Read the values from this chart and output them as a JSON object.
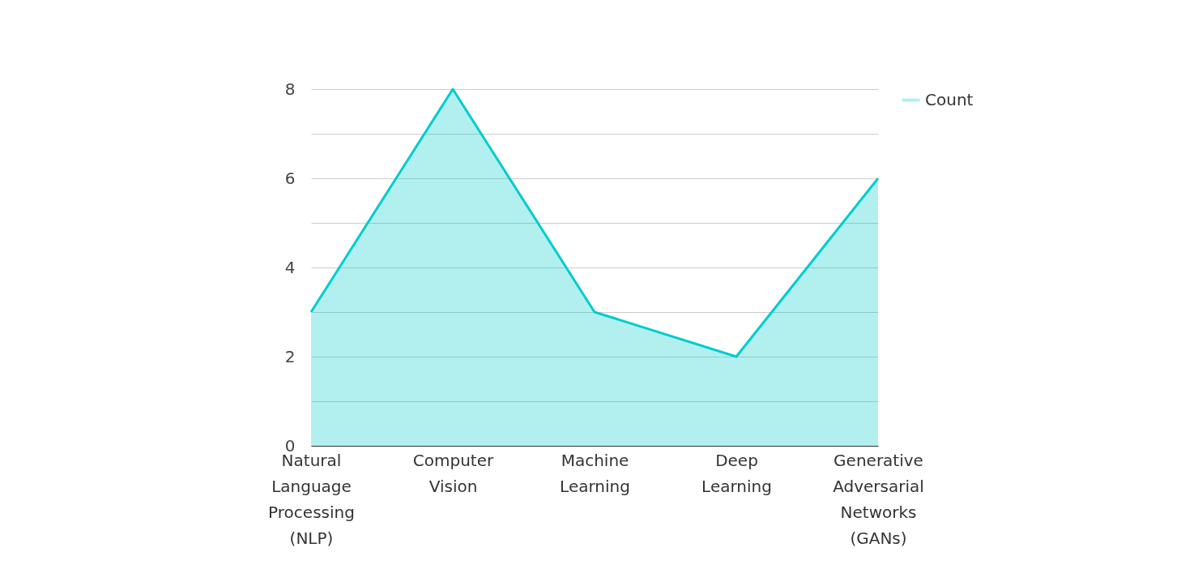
{
  "chart_data": {
    "type": "area",
    "categories": [
      "Natural Language Processing (NLP)",
      "Computer Vision",
      "Machine Learning",
      "Deep Learning",
      "Generative Adversarial Networks (GANs)"
    ],
    "series": [
      {
        "name": "Count",
        "color": "#00cccc",
        "values": [
          3,
          8,
          3,
          2,
          6
        ]
      }
    ],
    "ylim": [
      0,
      8
    ],
    "yticks": [
      0,
      {
        "value": 1,
        "label": null
      },
      2,
      {
        "value": 3,
        "label": null
      },
      4,
      {
        "value": 5,
        "label": null
      },
      6,
      {
        "value": 7,
        "label": null
      },
      8
    ],
    "grid": true,
    "legend": "top right"
  }
}
